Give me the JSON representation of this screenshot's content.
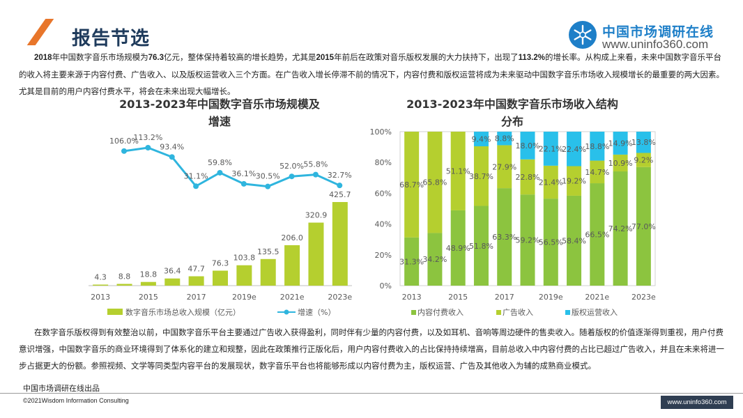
{
  "header": {
    "title": "报告节选",
    "logo_name": "中国市场调研在线",
    "logo_url": "www.uninfo360.com",
    "accent_color": "#e8762b"
  },
  "intro_paragraph": [
    {
      "text": "2018",
      "bold": true
    },
    {
      "text": "年中国数字音乐市场规模为",
      "bold": false
    },
    {
      "text": "76.3",
      "bold": true
    },
    {
      "text": "亿元，整体保持着较高的增长趋势，尤其是",
      "bold": false
    },
    {
      "text": "2015",
      "bold": true
    },
    {
      "text": "年前后在政策对音乐版权发展的大力扶持下，出现了",
      "bold": false
    },
    {
      "text": "113.2%",
      "bold": true
    },
    {
      "text": "的增长率。从构成上来看，未来中国数字音乐平台的收入将主要来源于内容付费、广告收入、以及版权运营收入三个方面。在广告收入增长停滞不前的情况下，内容付费和版权运营将成为未来驱动中国数字音乐市场收入规模增长的最重要的两大因素。尤其是目前的用户内容付费水平，将会在未来出现大幅增长。",
      "bold": false
    }
  ],
  "body_paragraph": "在数字音乐版权得到有效整治以前，中国数字音乐平台主要通过广告收入获得盈利，同时伴有少量的内容付费，以及如耳机、音响等周边硬件的售卖收入。随着版权的价值逐渐得到重视，用户付费意识增强，中国数字音乐的商业环境得到了体系化的建立和规整，因此在政策推行正版化后，用户内容付费收入的占比保持持续增高，目前总收入中内容付费的占比已超过广告收入，并且在未来将进一步占据更大的份额。参照视频、文学等同类型内容平台的发展现状，数字音乐平台也将能够形成以内容付费为主，版权运营、广告及其他收入为辅的成熟商业模式。",
  "footer": {
    "publisher": "中国市场调研在线出品",
    "copyright": "©2021Wisdom Information Consulting",
    "url": "www.uninfo360.com"
  },
  "chart_data": [
    {
      "type": "bar",
      "title": "2013-2023年中国数字音乐市场规模及增速",
      "categories": [
        "2013",
        "2014",
        "2015",
        "2016",
        "2017",
        "2018",
        "2019e",
        "2020e",
        "2021e",
        "2022e",
        "2023e"
      ],
      "tick_labels": [
        "2013",
        "",
        "2015",
        "",
        "2017",
        "",
        "2019e",
        "",
        "2021e",
        "",
        "2023e"
      ],
      "series": [
        {
          "name": "数字音乐市场总收入规模（亿元）",
          "kind": "bar",
          "color": "#b5cf2f",
          "values": [
            4.3,
            8.8,
            18.8,
            36.4,
            47.7,
            76.3,
            103.8,
            135.5,
            206.0,
            320.9,
            425.7
          ]
        },
        {
          "name": "增速（%）",
          "kind": "line",
          "color": "#2fb5de",
          "values": [
            106.0,
            113.2,
            93.4,
            31.1,
            59.8,
            36.1,
            30.5,
            52.0,
            55.8,
            32.7
          ],
          "x_start_index": 1,
          "labels": [
            "106.0%",
            "113.2%",
            "93.4%",
            "31.1%",
            "59.8%",
            "36.1%",
            "30.5%",
            "52.0%",
            "55.8%",
            "32.7%"
          ]
        }
      ],
      "bar_labels": [
        "4.3",
        "8.8",
        "18.8",
        "36.4",
        "47.7",
        "76.3",
        "103.8",
        "135.5",
        "206.0",
        "320.9",
        "425.7"
      ],
      "legend": [
        "数字音乐市场总收入规模（亿元）",
        "增速（%）"
      ],
      "legend_position": "bottom",
      "xlabel": "",
      "ylabel": "",
      "grid": false
    },
    {
      "type": "bar",
      "stacked": true,
      "title": "2013-2023年中国数字音乐市场收入结构分布",
      "categories": [
        "2013",
        "2014",
        "2015",
        "2016",
        "2017",
        "2018",
        "2019e",
        "2020e",
        "2021e",
        "2022e",
        "2023e"
      ],
      "tick_labels": [
        "2013",
        "",
        "2015",
        "",
        "2017",
        "",
        "2019e",
        "",
        "2021e",
        "",
        "2023e"
      ],
      "y_ticks": [
        "0%",
        "20%",
        "40%",
        "60%",
        "80%",
        "100%"
      ],
      "ylim": [
        0,
        100
      ],
      "series": [
        {
          "name": "内容付费收入",
          "color": "#8cc43f",
          "values": [
            31.3,
            34.2,
            48.9,
            51.8,
            63.3,
            59.2,
            56.5,
            58.4,
            66.5,
            74.2,
            77.0
          ]
        },
        {
          "name": "广告收入",
          "color": "#b5cf2f",
          "values": [
            68.7,
            65.8,
            51.1,
            38.7,
            27.9,
            22.8,
            21.4,
            19.2,
            14.7,
            10.9,
            9.2
          ]
        },
        {
          "name": "版权运营收入",
          "color": "#29c0ea",
          "values": [
            0,
            0,
            0,
            9.4,
            8.8,
            18.0,
            22.1,
            22.4,
            18.8,
            14.9,
            13.8
          ]
        }
      ],
      "legend": [
        "内容付费收入",
        "广告收入",
        "版权运营收入"
      ],
      "legend_position": "bottom",
      "grid": false
    }
  ]
}
